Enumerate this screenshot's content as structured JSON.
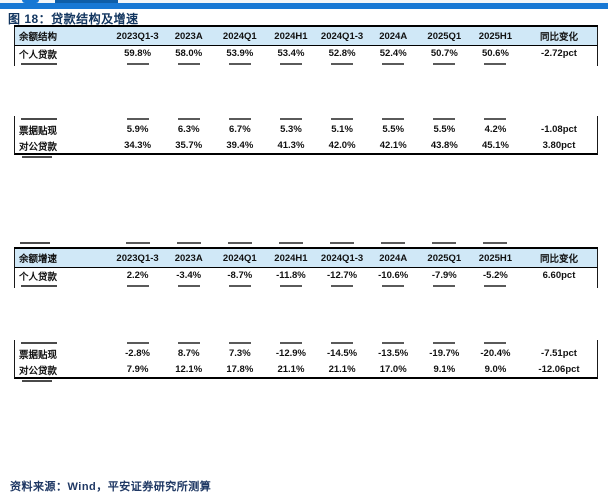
{
  "page": {
    "title": "图 18：贷款结构及增速",
    "source_note": "资料来源：Wind，平安证券研究所测算"
  },
  "columns": [
    "2023Q1-3",
    "2023A",
    "2024Q1",
    "2024H1",
    "2024Q1-3",
    "2024A",
    "2025Q1",
    "2025H1",
    "同比变化"
  ],
  "tables": [
    {
      "label": "余额结构",
      "rows": [
        {
          "name": "个人贷款",
          "values": [
            "59.8%",
            "58.0%",
            "53.9%",
            "53.4%",
            "52.8%",
            "52.4%",
            "50.7%",
            "50.6%",
            "-2.72pct"
          ]
        },
        {
          "name": "票据贴现",
          "values": [
            "5.9%",
            "6.3%",
            "6.7%",
            "5.3%",
            "5.1%",
            "5.5%",
            "5.5%",
            "4.2%",
            "-1.08pct"
          ]
        },
        {
          "name": "对公贷款",
          "values": [
            "34.3%",
            "35.7%",
            "39.4%",
            "41.3%",
            "42.0%",
            "42.1%",
            "43.8%",
            "45.1%",
            "3.80pct"
          ]
        }
      ]
    },
    {
      "label": "余额增速",
      "rows": [
        {
          "name": "个人贷款",
          "values": [
            "2.2%",
            "-3.4%",
            "-8.7%",
            "-11.8%",
            "-12.7%",
            "-10.6%",
            "-7.9%",
            "-5.2%",
            "6.60pct"
          ]
        },
        {
          "name": "票据贴现",
          "values": [
            "-2.8%",
            "8.7%",
            "7.3%",
            "-12.9%",
            "-14.5%",
            "-13.5%",
            "-19.7%",
            "-20.4%",
            "-7.51pct"
          ]
        },
        {
          "name": "对公贷款",
          "values": [
            "7.9%",
            "12.1%",
            "17.8%",
            "21.1%",
            "21.1%",
            "17.0%",
            "9.1%",
            "9.0%",
            "-12.06pct"
          ]
        }
      ]
    }
  ],
  "colors": {
    "accent_bar": "#1878d4",
    "header_bg": "#d0e8f7",
    "title_text": "#12355f",
    "source_text": "#1f3864",
    "table_border": "#000000"
  }
}
